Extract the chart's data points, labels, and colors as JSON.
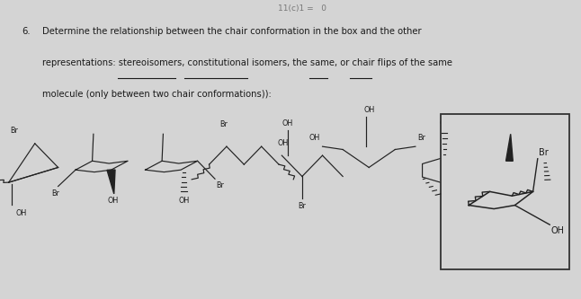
{
  "background_color": "#d4d4d4",
  "fig_width": 6.46,
  "fig_height": 3.33,
  "dpi": 100,
  "text_color": "#1a1a1a",
  "font_size_question": 7.2,
  "top_annotation": "11(c)1 =   0",
  "line1": "Determine the relationship between the chair conformation in the box and the other",
  "line2_parts": [
    [
      "representations: ",
      false
    ],
    [
      "stereoisomers",
      true
    ],
    [
      ", ",
      false
    ],
    [
      "constitutional",
      true
    ],
    [
      " isomers, the ",
      false
    ],
    [
      "same",
      true
    ],
    [
      ", or ",
      false
    ],
    [
      "chair",
      true
    ],
    [
      " flips of the same",
      false
    ]
  ],
  "line3": "molecule (only between two chair conformations)):"
}
